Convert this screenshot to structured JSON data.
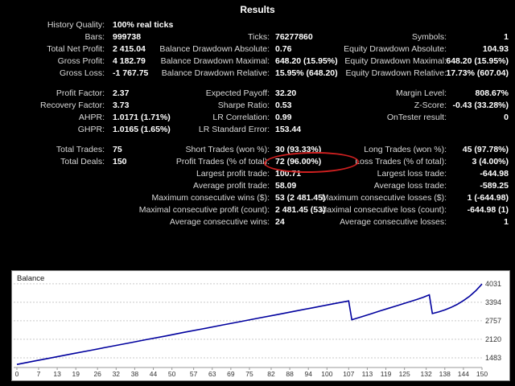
{
  "title": "Results",
  "highlight": {
    "target": "Profit Trades (% of total)",
    "color": "#cf2020"
  },
  "stats": {
    "rows": [
      {
        "l": [
          "History Quality:",
          "100% real ticks"
        ]
      },
      {
        "l": [
          "Bars:",
          "999738"
        ],
        "m": [
          "Ticks:",
          "76277860"
        ],
        "r": [
          "Symbols:",
          "1"
        ]
      },
      {
        "l": [
          "Total Net Profit:",
          "2 415.04"
        ],
        "m": [
          "Balance Drawdown Absolute:",
          "0.76"
        ],
        "r": [
          "Equity Drawdown Absolute:",
          "104.93"
        ]
      },
      {
        "l": [
          "Gross Profit:",
          "4 182.79"
        ],
        "m": [
          "Balance Drawdown Maximal:",
          "648.20 (15.95%)"
        ],
        "r": [
          "Equity Drawdown Maximal:",
          "648.20 (15.95%)"
        ]
      },
      {
        "l": [
          "Gross Loss:",
          "-1 767.75"
        ],
        "m": [
          "Balance Drawdown Relative:",
          "15.95% (648.20)"
        ],
        "r": [
          "Equity Drawdown Relative:",
          "17.73% (607.04)"
        ]
      },
      {
        "spacer": true
      },
      {
        "l": [
          "Profit Factor:",
          "2.37"
        ],
        "m": [
          "Expected Payoff:",
          "32.20"
        ],
        "r": [
          "Margin Level:",
          "808.67%"
        ]
      },
      {
        "l": [
          "Recovery Factor:",
          "3.73"
        ],
        "m": [
          "Sharpe Ratio:",
          "0.53"
        ],
        "r": [
          "Z-Score:",
          "-0.43 (33.28%)"
        ]
      },
      {
        "l": [
          "AHPR:",
          "1.0171 (1.71%)"
        ],
        "m": [
          "LR Correlation:",
          "0.99"
        ],
        "r": [
          "OnTester result:",
          "0"
        ]
      },
      {
        "l": [
          "GHPR:",
          "1.0165 (1.65%)"
        ],
        "m": [
          "LR Standard Error:",
          "153.44"
        ]
      },
      {
        "spacer": true
      },
      {
        "l": [
          "Total Trades:",
          "75"
        ],
        "m": [
          "Short Trades (won %):",
          "30 (93.33%)"
        ],
        "r": [
          "Long Trades (won %):",
          "45 (97.78%)"
        ]
      },
      {
        "l": [
          "Total Deals:",
          "150"
        ],
        "m": [
          "Profit Trades (% of total):",
          "72 (96.00%)"
        ],
        "r": [
          "Loss Trades (% of total):",
          "3 (4.00%)"
        ]
      },
      {
        "m": [
          "Largest profit trade:",
          "100.71"
        ],
        "r": [
          "Largest loss trade:",
          "-644.98"
        ]
      },
      {
        "m": [
          "Average profit trade:",
          "58.09"
        ],
        "r": [
          "Average loss trade:",
          "-589.25"
        ]
      },
      {
        "m": [
          "Maximum consecutive wins ($):",
          "53 (2 481.45)"
        ],
        "r": [
          "Maximum consecutive losses ($):",
          "1 (-644.98)"
        ]
      },
      {
        "m": [
          "Maximal consecutive profit (count):",
          "2 481.45 (53)"
        ],
        "r": [
          "Maximal consecutive loss (count):",
          "-644.98 (1)"
        ]
      },
      {
        "m": [
          "Average consecutive wins:",
          "24"
        ],
        "r": [
          "Average consecutive losses:",
          "1"
        ]
      }
    ]
  },
  "chart_data": {
    "type": "line",
    "title": "Balance",
    "legend": "Balance",
    "line_color": "#00009e",
    "grid": true,
    "legend_position": "top-left",
    "xlim": [
      0,
      150
    ],
    "ylim": [
      1150,
      4330
    ],
    "x_ticks": [
      0,
      7,
      13,
      19,
      26,
      32,
      38,
      44,
      50,
      57,
      63,
      69,
      75,
      82,
      88,
      94,
      100,
      107,
      113,
      119,
      125,
      132,
      138,
      144,
      150
    ],
    "y_ticks": [
      1483,
      2120,
      2757,
      3394,
      4031
    ],
    "points": [
      [
        0,
        1255
      ],
      [
        6,
        1380
      ],
      [
        12,
        1500
      ],
      [
        18,
        1625
      ],
      [
        24,
        1745
      ],
      [
        30,
        1870
      ],
      [
        36,
        1990
      ],
      [
        42,
        2115
      ],
      [
        48,
        2235
      ],
      [
        54,
        2360
      ],
      [
        60,
        2480
      ],
      [
        66,
        2605
      ],
      [
        72,
        2725
      ],
      [
        78,
        2850
      ],
      [
        84,
        2970
      ],
      [
        90,
        3095
      ],
      [
        96,
        3215
      ],
      [
        102,
        3340
      ],
      [
        107,
        3440
      ],
      [
        108,
        2792
      ],
      [
        111,
        2890
      ],
      [
        114,
        2990
      ],
      [
        117,
        3090
      ],
      [
        120,
        3190
      ],
      [
        123,
        3290
      ],
      [
        126,
        3390
      ],
      [
        129,
        3490
      ],
      [
        131,
        3560
      ],
      [
        133,
        3650
      ],
      [
        134,
        3005
      ],
      [
        136,
        3060
      ],
      [
        138,
        3130
      ],
      [
        140,
        3215
      ],
      [
        142,
        3320
      ],
      [
        144,
        3450
      ],
      [
        146,
        3600
      ],
      [
        148,
        3790
      ],
      [
        150,
        4020
      ]
    ]
  }
}
